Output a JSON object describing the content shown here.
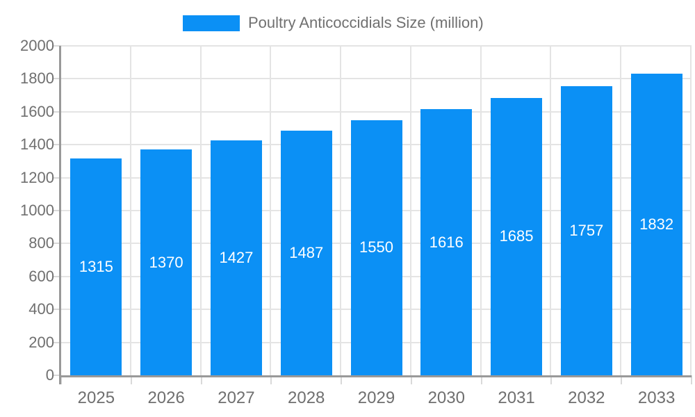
{
  "chart_data": {
    "type": "bar",
    "title": "Poultry Anticoccidials Size (million)",
    "legend": [
      {
        "label": "Poultry Anticoccidials Size (million)",
        "color": "#0b90f5"
      }
    ],
    "legend_position": "top",
    "categories": [
      "2025",
      "2026",
      "2027",
      "2028",
      "2029",
      "2030",
      "2031",
      "2032",
      "2033"
    ],
    "series": [
      {
        "name": "Poultry Anticoccidials Size (million)",
        "values": [
          1315,
          1370,
          1427,
          1487,
          1550,
          1616,
          1685,
          1757,
          1832
        ]
      }
    ],
    "value_labels": [
      "1315",
      "1370",
      "1427",
      "1487",
      "1550",
      "1616",
      "1685",
      "1757",
      "1832"
    ],
    "xlabel": "",
    "ylabel": "",
    "ylim": [
      0,
      2000
    ],
    "ytick_step": 200,
    "yticks": [
      "0",
      "200",
      "400",
      "600",
      "800",
      "1000",
      "1200",
      "1400",
      "1600",
      "1800",
      "2000"
    ],
    "grid": true,
    "colors": {
      "bar": "#0b90f5",
      "value_label": "#ffffff",
      "axis_line": "#999999",
      "grid_line": "#e4e4e4",
      "tick_line": "#d9d9d9",
      "axis_text": "#6f6f6f",
      "legend_text": "#707070",
      "background": "#ffffff"
    }
  }
}
